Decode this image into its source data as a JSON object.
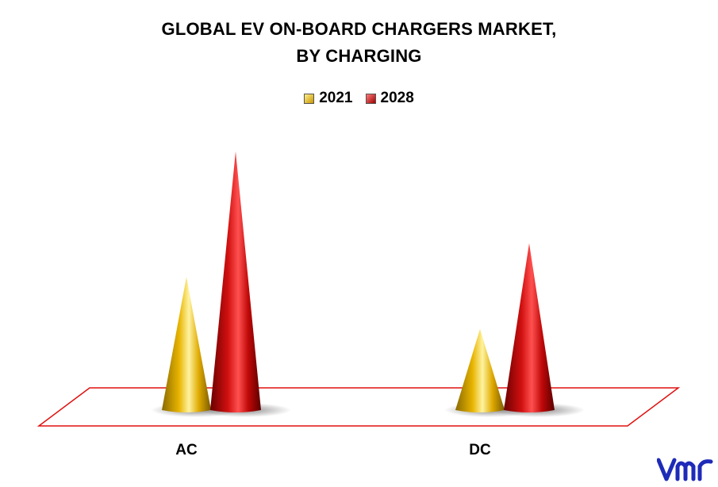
{
  "chart_data": {
    "type": "bar",
    "title_line1": "GLOBAL EV ON-BOARD CHARGERS MARKET,",
    "title_line2": "BY CHARGING",
    "categories": [
      "AC",
      "DC"
    ],
    "series": [
      {
        "name": "2021",
        "values": [
          4.4,
          2.7
        ]
      },
      {
        "name": "2028",
        "values": [
          8.5,
          5.5
        ]
      }
    ],
    "ylim": [
      0,
      10
    ],
    "grid": false,
    "legend": "top-center"
  },
  "colors": {
    "2021": "#e8b400",
    "2028": "#d11010",
    "floor_border": "#e01010"
  },
  "logo_icon": "vmr-logo"
}
